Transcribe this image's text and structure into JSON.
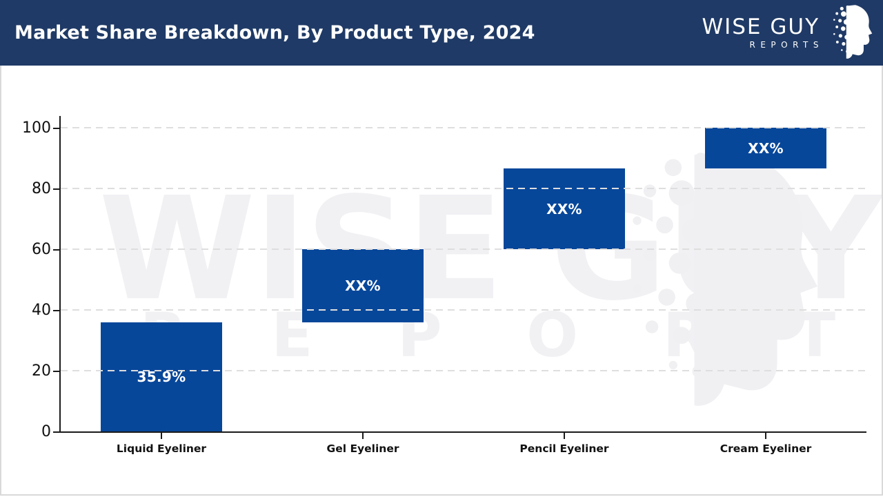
{
  "header": {
    "title": "Market Share Breakdown, By Product Type, 2024",
    "logo": {
      "line1": "WISE GUY",
      "line2": "REPORTS"
    }
  },
  "watermark": {
    "line1": "WISE GUY",
    "line2": "REPORTS"
  },
  "colors": {
    "header_bg": "#1F3A66",
    "bar_fill": "#07479A",
    "bar_label": "#ffffff",
    "gridline": "#dedede",
    "axis": "#1a1a1a",
    "watermark": "#f1f1f4"
  },
  "chart_data": {
    "type": "bar",
    "subtype": "waterfall",
    "title": "Market Share Breakdown, By Product Type, 2024",
    "categories": [
      "Liquid Eyeliner",
      "Gel Eyeliner",
      "Pencil Eyeliner",
      "Cream Eyeliner"
    ],
    "bars": [
      {
        "category": "Liquid Eyeliner",
        "start": 0,
        "end": 35.9,
        "label": "35.9%"
      },
      {
        "category": "Gel Eyeliner",
        "start": 35.9,
        "end": 60,
        "label": "XX%"
      },
      {
        "category": "Pencil Eyeliner",
        "start": 60,
        "end": 86.5,
        "label": "XX%"
      },
      {
        "category": "Cream Eyeliner",
        "start": 86.5,
        "end": 100,
        "label": "XX%"
      }
    ],
    "xlabel": "",
    "ylabel": "",
    "ylim": [
      0,
      100
    ],
    "yticks": [
      0,
      20,
      40,
      60,
      80,
      100
    ],
    "grid": "horizontal-dashed",
    "legend": "none"
  }
}
